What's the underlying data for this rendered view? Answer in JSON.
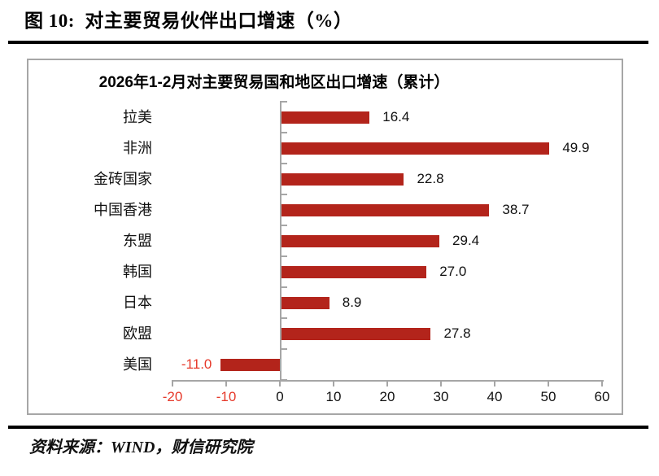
{
  "figure": {
    "title": "图 10:  对主要贸易伙伴出口增速（%）"
  },
  "chart_data": {
    "type": "bar",
    "orientation": "horizontal",
    "title": "2026年1-2月对主要贸易国和地区出口增速（累计）",
    "categories": [
      "拉美",
      "非洲",
      "金砖国家",
      "中国香港",
      "东盟",
      "韩国",
      "日本",
      "欧盟",
      "美国"
    ],
    "values": [
      16.4,
      49.9,
      22.8,
      38.7,
      29.4,
      27.0,
      8.9,
      27.8,
      -11.0
    ],
    "value_labels": [
      "16.4",
      "49.9",
      "22.8",
      "38.7",
      "29.4",
      "27.0",
      "8.9",
      "27.8",
      "-11.0"
    ],
    "x_ticks": [
      -20,
      -10,
      0,
      10,
      20,
      30,
      40,
      50,
      60
    ],
    "xlim": [
      -20,
      60
    ],
    "grid": "off",
    "legend": "none",
    "bar_color": "#b3241b",
    "negative_text_color": "#e6392a",
    "axis_color": "#a6a6a6",
    "text_color": "#111111"
  },
  "footer": {
    "source": "资料来源：WIND，财信研究院"
  }
}
